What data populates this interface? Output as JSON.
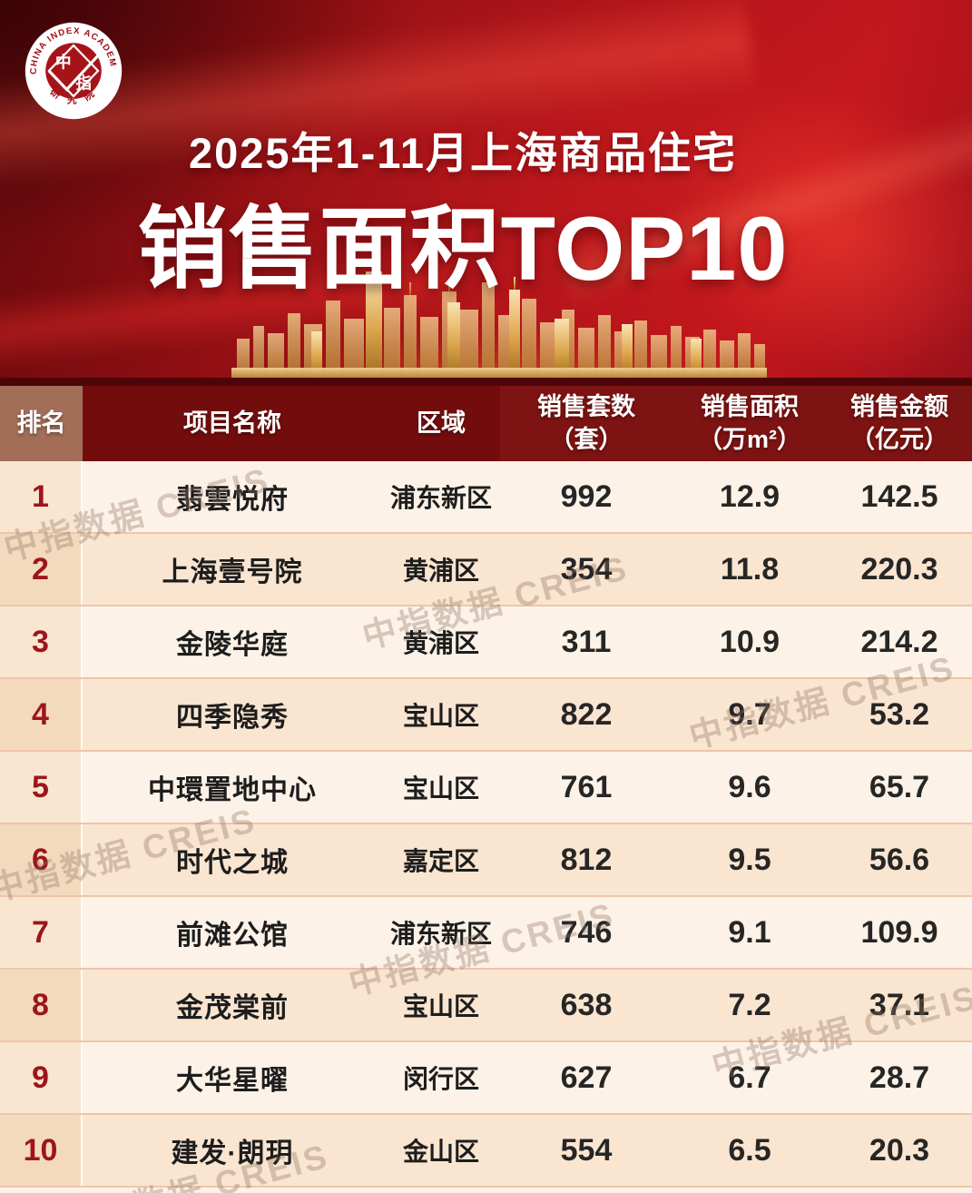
{
  "logo": {
    "ring_text": "CHINA INDEX ACADEMY",
    "bottom_text": "研 究 院",
    "mark_top": "中",
    "mark_bottom": "指"
  },
  "header": {
    "subtitle": "2025年1-11月上海商品住宅",
    "title": "销售面积TOP10"
  },
  "watermark": {
    "text": "中指数据 CREIS"
  },
  "table": {
    "columns": [
      {
        "label": "排名",
        "sub": ""
      },
      {
        "label": "项目名称",
        "sub": ""
      },
      {
        "label": "区域",
        "sub": ""
      },
      {
        "label": "销售套数",
        "sub": "（套）"
      },
      {
        "label": "销售面积",
        "sub": "（万m²）"
      },
      {
        "label": "销售金额",
        "sub": "（亿元）"
      }
    ],
    "rows": [
      {
        "rank": "1",
        "project": "翡雲悦府",
        "district": "浦东新区",
        "units": "992",
        "area": "12.9",
        "amount": "142.5"
      },
      {
        "rank": "2",
        "project": "上海壹号院",
        "district": "黄浦区",
        "units": "354",
        "area": "11.8",
        "amount": "220.3"
      },
      {
        "rank": "3",
        "project": "金陵华庭",
        "district": "黄浦区",
        "units": "311",
        "area": "10.9",
        "amount": "214.2"
      },
      {
        "rank": "4",
        "project": "四季隐秀",
        "district": "宝山区",
        "units": "822",
        "area": "9.7",
        "amount": "53.2"
      },
      {
        "rank": "5",
        "project": "中環置地中心",
        "district": "宝山区",
        "units": "761",
        "area": "9.6",
        "amount": "65.7"
      },
      {
        "rank": "6",
        "project": "时代之城",
        "district": "嘉定区",
        "units": "812",
        "area": "9.5",
        "amount": "56.6"
      },
      {
        "rank": "7",
        "project": "前滩公馆",
        "district": "浦东新区",
        "units": "746",
        "area": "9.1",
        "amount": "109.9"
      },
      {
        "rank": "8",
        "project": "金茂棠前",
        "district": "宝山区",
        "units": "638",
        "area": "7.2",
        "amount": "37.1"
      },
      {
        "rank": "9",
        "project": "大华星曜",
        "district": "闵行区",
        "units": "627",
        "area": "6.7",
        "amount": "28.7"
      },
      {
        "rank": "10",
        "project": "建发·朗玥",
        "district": "金山区",
        "units": "554",
        "area": "6.5",
        "amount": "20.3"
      }
    ]
  },
  "colors": {
    "banner_red": "#a61218",
    "header_dark_red": "#730d0d",
    "header_bright_red": "#7d1312",
    "rank_header_tan": "#a26e58",
    "rank_text_red": "#9c151c",
    "row_odd": "#fdf2e7",
    "row_even": "#f9e5d0",
    "row_border": "#eec5aa",
    "skyline_gold": "#d69a3e",
    "title_text": "#ffffff"
  },
  "chart_data": {
    "type": "table",
    "title": "2025年1-11月上海商品住宅 销售面积TOP10",
    "columns": [
      "排名",
      "项目名称",
      "区域",
      "销售套数(套)",
      "销售面积(万m²)",
      "销售金额(亿元)"
    ],
    "rows": [
      [
        1,
        "翡雲悦府",
        "浦东新区",
        992,
        12.9,
        142.5
      ],
      [
        2,
        "上海壹号院",
        "黄浦区",
        354,
        11.8,
        220.3
      ],
      [
        3,
        "金陵华庭",
        "黄浦区",
        311,
        10.9,
        214.2
      ],
      [
        4,
        "四季隐秀",
        "宝山区",
        822,
        9.7,
        53.2
      ],
      [
        5,
        "中環置地中心",
        "宝山区",
        761,
        9.6,
        65.7
      ],
      [
        6,
        "时代之城",
        "嘉定区",
        812,
        9.5,
        56.6
      ],
      [
        7,
        "前滩公馆",
        "浦东新区",
        746,
        9.1,
        109.9
      ],
      [
        8,
        "金茂棠前",
        "宝山区",
        638,
        7.2,
        37.1
      ],
      [
        9,
        "大华星曜",
        "闵行区",
        627,
        6.7,
        28.7
      ],
      [
        10,
        "建发·朗玥",
        "金山区",
        554,
        6.5,
        20.3
      ]
    ]
  }
}
